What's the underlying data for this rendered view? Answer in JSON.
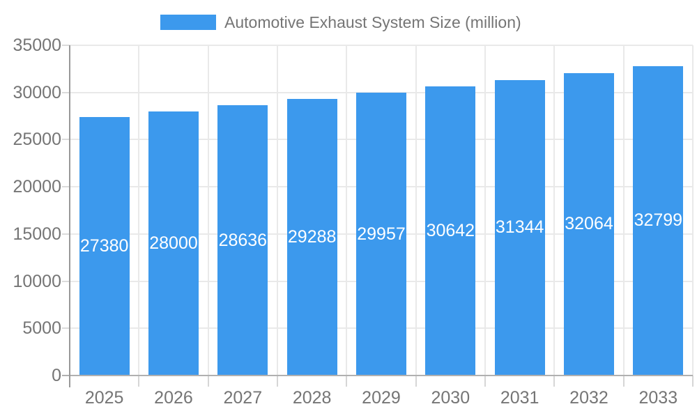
{
  "chart_data": {
    "type": "bar",
    "title": "Automotive Exhaust System Size (million)",
    "legend": {
      "label": "Automotive Exhaust System Size (million)",
      "position": "top"
    },
    "categories": [
      "2025",
      "2026",
      "2027",
      "2028",
      "2029",
      "2030",
      "2031",
      "2032",
      "2033"
    ],
    "values": [
      27380,
      28000,
      28636,
      29288,
      29957,
      30642,
      31344,
      32064,
      32799
    ],
    "xlabel": "",
    "ylabel": "",
    "ylim": [
      0,
      35000
    ],
    "yticks": [
      "0",
      "5000",
      "10000",
      "15000",
      "20000",
      "25000",
      "30000",
      "35000"
    ],
    "grid": true,
    "legend_position": "top",
    "bar_color": "#3C99ED",
    "value_label_color": "#FFFFFF"
  },
  "colors": {
    "accent": "#3C99ED",
    "axis_text": "#757575",
    "grid_line": "#E9E9E9",
    "axis_line_y": "#999999",
    "axis_line_x": "#B0B0B0",
    "tick": "#D6D6D6",
    "background": "#FFFFFF"
  }
}
